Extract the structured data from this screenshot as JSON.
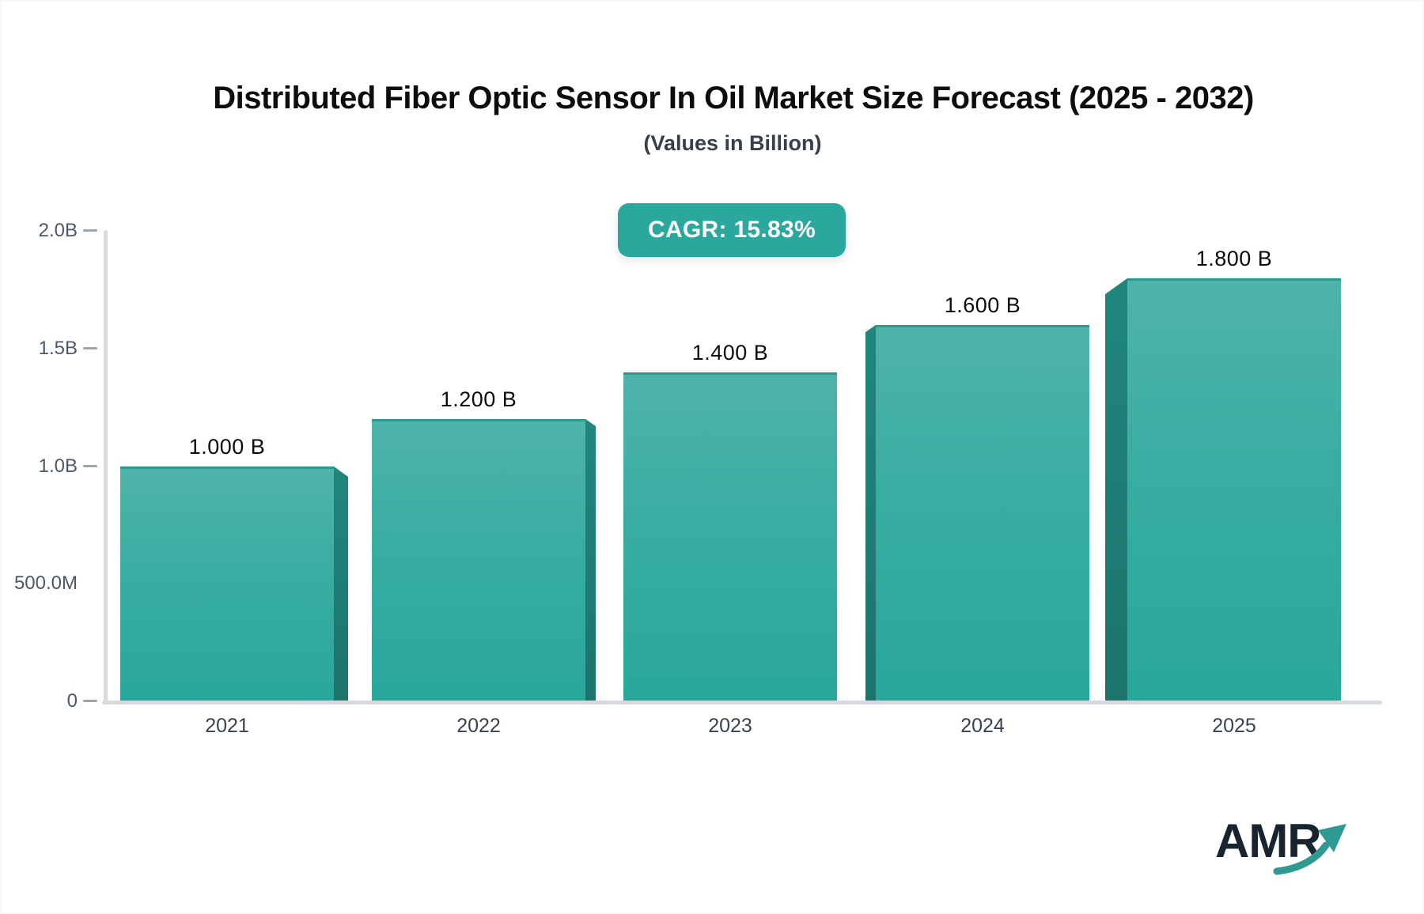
{
  "header": {
    "title": "Distributed Fiber Optic Sensor In Oil Market Size Forecast (2025 - 2032)",
    "subtitle": "(Values in Billion)"
  },
  "cagr_badge": {
    "label": "CAGR: 15.83%"
  },
  "chart_data": {
    "type": "bar",
    "title": "Distributed Fiber Optic Sensor In Oil Market Size Forecast (2025 - 2032)",
    "subtitle": "(Values in Billion)",
    "unit": "billions",
    "categories": [
      "2021",
      "2022",
      "2023",
      "2024",
      "2025"
    ],
    "values": [
      1.0,
      1.2,
      1.4,
      1.6,
      1.8
    ],
    "value_labels": [
      "1.000 B",
      "1.200 B",
      "1.400 B",
      "1.600 B",
      "1.800 B"
    ],
    "cagr": "15.83%",
    "y_axis": {
      "range": [
        0,
        2.0
      ],
      "ticks": [
        {
          "label": "2.0B",
          "value": 2.0,
          "has_tick_mark": true
        },
        {
          "label": "1.5B",
          "value": 1.5,
          "has_tick_mark": true
        },
        {
          "label": "1.0B",
          "value": 1.0,
          "has_tick_mark": true
        },
        {
          "label": "500.0M",
          "value": 0.5,
          "has_tick_mark": false
        },
        {
          "label": "0",
          "value": 0,
          "has_tick_mark": true
        }
      ]
    },
    "grid": "off",
    "legend": "none",
    "bar_style": "3d-teal",
    "bar_color_top": "#4FB3AA",
    "bar_color_bottom": "#29A79B",
    "bar_side_color": "#1E7C73"
  },
  "branding": {
    "logo_text": "AMR",
    "arrow_icon": "growth-arrow-icon",
    "arrow_color": "#2E9A93",
    "text_color": "#18242F"
  },
  "colors": {
    "badge_bg": "#2AA89E",
    "axis_line": "#D6DADE",
    "tick_mark": "#9AA6B0",
    "y_label": "#4C5866",
    "x_label": "#39434F",
    "value_label": "#0B0B0B",
    "title": "#0D0D0D",
    "subtitle": "#35404D",
    "background": "#FFFFFF"
  }
}
